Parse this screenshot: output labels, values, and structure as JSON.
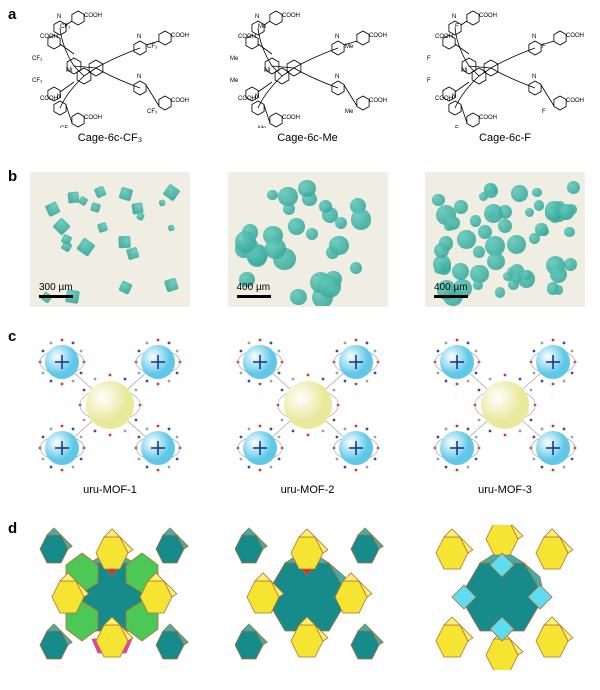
{
  "labels": {
    "a": "a",
    "b": "b",
    "c": "c",
    "d": "d"
  },
  "row_a": {
    "captions": [
      "Cage-6c-CF₃",
      "Cage-6c-Me",
      "Cage-6c-F"
    ],
    "substituents": [
      "CF₃",
      "Me",
      "F"
    ],
    "common_group": "COOH",
    "metal_label": "Ni",
    "atom_stroke": "#000000"
  },
  "row_b": {
    "scalebars": [
      "300 µm",
      "400 µm",
      "400 µm"
    ],
    "background": "#F0EDE3",
    "crystal_color": "#3BB3A5",
    "crystal_dark": "#2E9E92",
    "samples": [
      {
        "shape": "sq",
        "count": 22,
        "size_range": [
          6,
          14
        ]
      },
      {
        "shape": "rd",
        "count": 30,
        "size_range": [
          10,
          24
        ]
      },
      {
        "shape": "rd",
        "count": 60,
        "size_range": [
          8,
          20
        ]
      }
    ]
  },
  "row_c": {
    "captions": [
      "uru-MOF-1",
      "uru-MOF-2",
      "uru-MOF-3"
    ],
    "center_sphere": "#E8E99A",
    "corner_sphere": "#5FC8E8",
    "bond_red": "#E03030",
    "bond_blue": "#3848C8",
    "bond_gray": "#A0A0A0",
    "cross_color": "#1A2A88"
  },
  "row_d": {
    "colors": {
      "teal": "#178B8B",
      "teal_light": "#3FB0B0",
      "yellow": "#F5E532",
      "cyan": "#5FDDF0",
      "red": "#E8262A",
      "green": "#4BC855",
      "magenta": "#E838C8",
      "edge": "#B07030"
    },
    "variants": [
      {
        "has_green": true,
        "has_magenta": true,
        "cyan_corners": false
      },
      {
        "has_green": false,
        "has_magenta": false,
        "cyan_corners": false
      },
      {
        "has_green": false,
        "has_magenta": false,
        "cyan_corners": true
      }
    ]
  }
}
